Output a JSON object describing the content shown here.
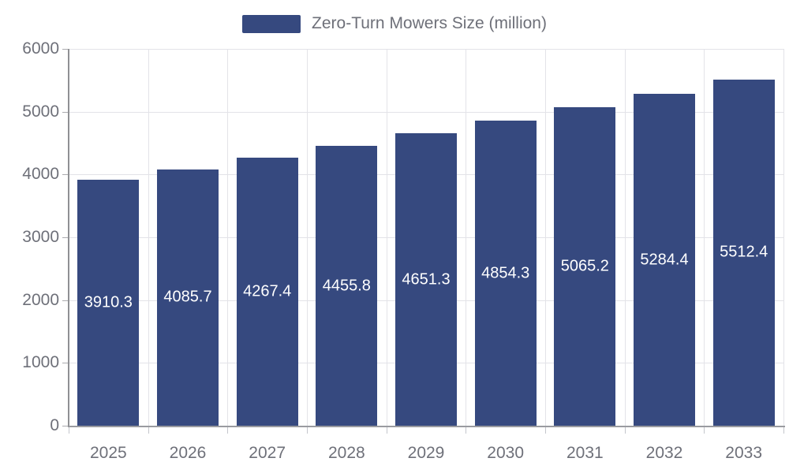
{
  "legend": {
    "label": "Zero-Turn Mowers Size (million)"
  },
  "colors": {
    "bar": "#36497f",
    "bar_value_text": "#ffffff",
    "axis_text": "#6e7079",
    "grid": "#e3e3e8",
    "axis_line": "#8f9094"
  },
  "chart_data": {
    "type": "bar",
    "title": "Zero-Turn Mowers Size (million)",
    "categories": [
      "2025",
      "2026",
      "2027",
      "2028",
      "2029",
      "2030",
      "2031",
      "2032",
      "2033"
    ],
    "values": [
      3910.3,
      4085.7,
      4267.4,
      4455.8,
      4651.3,
      4854.3,
      5065.2,
      5284.4,
      5512.4
    ],
    "series_name": "Zero-Turn Mowers Size (million)",
    "xlabel": "",
    "ylabel": "",
    "ylim": [
      0,
      6000
    ],
    "yticks": [
      0,
      1000,
      2000,
      3000,
      4000,
      5000,
      6000
    ],
    "grid": true,
    "legend_position": "top-center",
    "value_label_position": "inside-middle"
  }
}
